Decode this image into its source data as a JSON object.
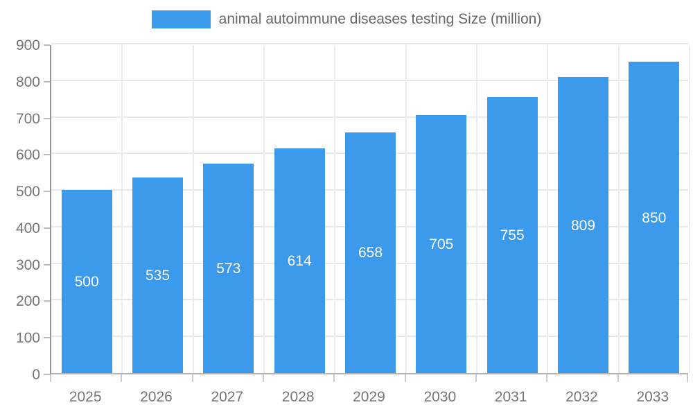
{
  "chart_data": {
    "type": "bar",
    "title": "",
    "legend_label": "animal autoimmune diseases testing Size (million)",
    "categories": [
      "2025",
      "2026",
      "2027",
      "2028",
      "2029",
      "2030",
      "2031",
      "2032",
      "2033"
    ],
    "values": [
      500,
      535,
      573,
      614,
      658,
      705,
      755,
      809,
      850
    ],
    "series_name": "animal autoimmune diseases testing Size (million)",
    "xlabel": "",
    "ylabel": "",
    "ylim": [
      0,
      900
    ],
    "ytick_step": 100,
    "grid": true,
    "legend_position": "top",
    "value_labels": "inside-center-white",
    "colors": {
      "bar": "#3b9aec",
      "legend_text": "#666666",
      "tick_text": "#757575",
      "gridline": "#e8e8e8",
      "axis_line": "#949494"
    }
  }
}
